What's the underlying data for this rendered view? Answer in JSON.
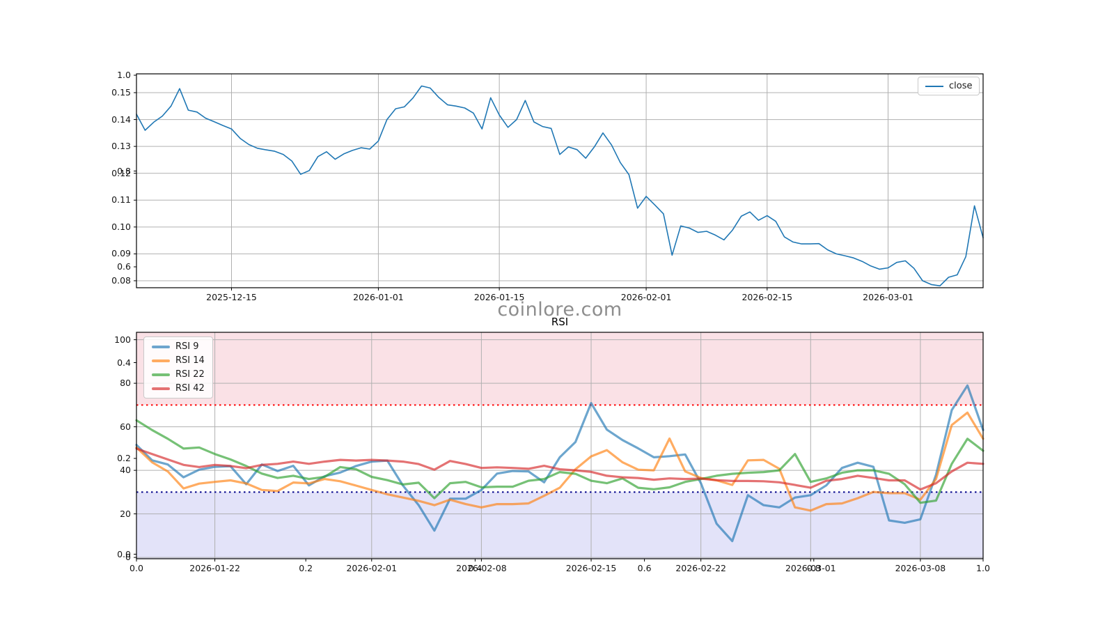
{
  "watermark": "coinlore.com",
  "price_chart": {
    "legend_label": "close",
    "line_color": "#1f77b4"
  },
  "rsi_chart": {
    "title": "RSI",
    "legend": [
      "RSI 9",
      "RSI 14",
      "RSI 22",
      "RSI 42"
    ],
    "overbought_level": 70,
    "oversold_level": 30,
    "overbought_line_color": "#ff0000",
    "oversold_line_color": "#00008b",
    "overbought_band_color": "rgba(220,20,60,0.13)",
    "oversold_band_color": "rgba(70,70,215,0.15)"
  },
  "phantom_axis": {
    "x_labels": [
      "0.0",
      "0.2",
      "0.4",
      "0.6",
      "0.8",
      "1.0"
    ],
    "y_labels": [
      "0.0",
      "0.2",
      "0.4",
      "0.6",
      "0.8",
      "1.0"
    ]
  },
  "chart_data": [
    {
      "type": "line",
      "name": "price",
      "title": "",
      "xlabel": "",
      "ylabel": "",
      "start_date": "2025-12-04",
      "end_date": "2026-03-12",
      "ylim": [
        0.0774,
        0.157
      ],
      "grid": true,
      "legend_position": "upper right",
      "y_ticks": [
        0.08,
        0.09,
        0.1,
        0.11,
        0.12,
        0.13,
        0.14,
        0.15
      ],
      "x_ticks": [
        {
          "label": "2025-12-15",
          "day": 11
        },
        {
          "label": "2026-01-01",
          "day": 28
        },
        {
          "label": "2026-01-15",
          "day": 42
        },
        {
          "label": "2026-02-01",
          "day": 59
        },
        {
          "label": "2026-02-15",
          "day": 73
        },
        {
          "label": "2026-03-01",
          "day": 87
        }
      ],
      "series": [
        {
          "name": "close",
          "color": "#1f77b4",
          "line_width": 1.6,
          "opacity": 1,
          "values": [
            0.142,
            0.136,
            0.139,
            0.1413,
            0.145,
            0.1515,
            0.1435,
            0.1428,
            0.1405,
            0.1392,
            0.1378,
            0.1365,
            0.133,
            0.1307,
            0.1293,
            0.1287,
            0.1282,
            0.127,
            0.1245,
            0.1196,
            0.121,
            0.1262,
            0.128,
            0.1252,
            0.1272,
            0.1285,
            0.1295,
            0.129,
            0.132,
            0.14,
            0.144,
            0.1447,
            0.148,
            0.1525,
            0.1517,
            0.1482,
            0.1455,
            0.145,
            0.1443,
            0.1424,
            0.1365,
            0.1481,
            0.1417,
            0.1371,
            0.14,
            0.1471,
            0.1391,
            0.1374,
            0.1367,
            0.127,
            0.1298,
            0.1288,
            0.1256,
            0.1298,
            0.135,
            0.1305,
            0.124,
            0.1195,
            0.107,
            0.1114,
            0.1082,
            0.1049,
            0.0895,
            0.1004,
            0.0996,
            0.098,
            0.0984,
            0.097,
            0.0952,
            0.0989,
            0.104,
            0.1056,
            0.1025,
            0.1042,
            0.1021,
            0.0963,
            0.0944,
            0.0937,
            0.0937,
            0.0938,
            0.0915,
            0.09,
            0.0893,
            0.0885,
            0.0872,
            0.0855,
            0.0843,
            0.0848,
            0.0868,
            0.0874,
            0.0846,
            0.08,
            0.0786,
            0.0781,
            0.0813,
            0.0822,
            0.089,
            0.1079,
            0.096
          ]
        }
      ]
    },
    {
      "type": "line",
      "name": "rsi",
      "title": "RSI",
      "xlabel": "",
      "ylabel": "",
      "start_date": "2026-01-17",
      "end_date": "2026-03-12",
      "ylim": [
        -0.6,
        103.4
      ],
      "grid": true,
      "legend_position": "upper left",
      "y_ticks": [
        0,
        20,
        40,
        60,
        80,
        100
      ],
      "x_ticks": [
        {
          "label": "2026-01-22",
          "day": 5
        },
        {
          "label": "2026-02-01",
          "day": 15
        },
        {
          "label": "2026-02-08",
          "day": 22
        },
        {
          "label": "2026-02-15",
          "day": 29
        },
        {
          "label": "2026-02-22",
          "day": 36
        },
        {
          "label": "2026-03-01",
          "day": 43
        },
        {
          "label": "2026-03-08",
          "day": 50
        }
      ],
      "hlines": [
        {
          "value": 70,
          "color": "#ff0000",
          "style": "dotted"
        },
        {
          "value": 30,
          "color": "#00008b",
          "style": "dotted"
        }
      ],
      "bands": [
        {
          "from": 70,
          "to": 103.4,
          "color": "rgba(220,20,60,0.13)"
        },
        {
          "from": -0.6,
          "to": 30,
          "color": "rgba(70,70,215,0.15)"
        }
      ],
      "series": [
        {
          "name": "RSI 9",
          "color": "#1f77b4",
          "line_width": 3.2,
          "opacity": 0.65,
          "values": [
            51.7,
            44.6,
            42.7,
            36.8,
            40.3,
            41.6,
            41.9,
            33.6,
            42.7,
            39.7,
            42.1,
            33.1,
            37.3,
            39.0,
            42.0,
            44.0,
            44.5,
            33.0,
            24.0,
            12.3,
            27.0,
            27.0,
            31.0,
            38.5,
            39.7,
            39.5,
            34.5,
            46.0,
            53.0,
            70.9,
            58.7,
            53.9,
            50.1,
            46.0,
            46.5,
            47.3,
            34.1,
            15.5,
            7.5,
            28.6,
            24.0,
            23.0,
            27.5,
            28.6,
            33.1,
            41.1,
            43.5,
            41.6,
            17.0,
            15.9,
            17.5,
            38.0,
            67.7,
            79.0,
            58.5
          ]
        },
        {
          "name": "RSI 14",
          "color": "#ff7f0e",
          "line_width": 3.2,
          "opacity": 0.65,
          "values": [
            50.5,
            43.7,
            39.5,
            31.7,
            33.9,
            34.7,
            35.4,
            34.0,
            31.0,
            30.5,
            34.4,
            34.0,
            36.0,
            35.0,
            33.0,
            31.0,
            29.0,
            27.5,
            26.0,
            24.0,
            26.5,
            24.5,
            23.0,
            24.5,
            24.5,
            24.8,
            28.3,
            32.0,
            40.5,
            46.4,
            49.3,
            43.7,
            40.3,
            40.0,
            54.6,
            39.5,
            36.5,
            35.4,
            33.3,
            44.6,
            44.8,
            40.7,
            23.0,
            21.5,
            24.5,
            24.8,
            27.2,
            30.1,
            29.5,
            29.5,
            26.5,
            36.0,
            60.8,
            66.5,
            54.5
          ]
        },
        {
          "name": "RSI 22",
          "color": "#2ca02c",
          "line_width": 3.2,
          "opacity": 0.65,
          "values": [
            63.0,
            58.5,
            54.5,
            50.0,
            50.5,
            47.5,
            45.0,
            42.0,
            38.5,
            36.5,
            37.5,
            36.0,
            37.0,
            41.5,
            40.5,
            37.0,
            35.5,
            33.5,
            34.3,
            27.2,
            34.1,
            34.7,
            32.2,
            32.5,
            32.5,
            35.2,
            36.0,
            39.2,
            38.4,
            35.2,
            34.1,
            36.3,
            32.0,
            31.3,
            32.2,
            34.7,
            36.0,
            37.5,
            38.4,
            38.9,
            39.2,
            40.0,
            47.5,
            34.7,
            36.3,
            38.9,
            40.0,
            40.0,
            38.4,
            33.6,
            25.1,
            26.1,
            43.0,
            54.5,
            49.0
          ]
        },
        {
          "name": "RSI 42",
          "color": "#d62728",
          "line_width": 3.2,
          "opacity": 0.65,
          "values": [
            50.0,
            47.5,
            45.0,
            42.5,
            41.5,
            42.5,
            42.0,
            41.0,
            42.5,
            43.0,
            44.0,
            43.0,
            44.0,
            44.8,
            44.5,
            44.8,
            44.5,
            44.0,
            42.9,
            40.3,
            44.3,
            42.9,
            41.1,
            41.4,
            41.1,
            40.7,
            42.1,
            40.5,
            40.0,
            39.3,
            37.5,
            36.8,
            36.5,
            35.7,
            36.3,
            36.0,
            36.2,
            35.5,
            35.1,
            35.1,
            35.0,
            34.5,
            33.3,
            32.0,
            35.2,
            36.0,
            37.5,
            36.5,
            35.4,
            35.4,
            31.2,
            34.1,
            39.5,
            43.5,
            43.0
          ]
        }
      ]
    }
  ]
}
